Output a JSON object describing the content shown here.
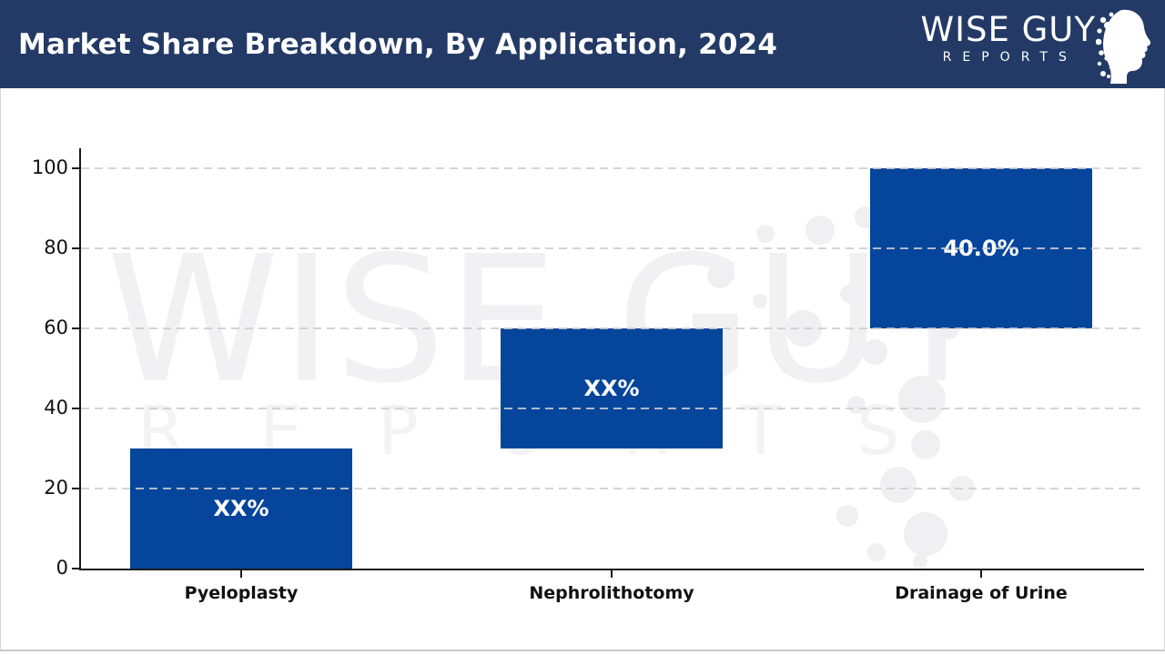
{
  "header": {
    "title": "Market Share Breakdown, By Application, 2024",
    "bg_color": "#233a66",
    "logo": {
      "line1": "WISE GUY",
      "line2": "REPORTS"
    }
  },
  "watermark": {
    "line1": "WISE GUY",
    "line2": "REPORTS"
  },
  "chart_data": {
    "type": "bar",
    "subtype": "waterfall",
    "title": "",
    "xlabel": "",
    "ylabel": "",
    "categories": [
      "Pyeloplasty",
      "Nephrolithotomy",
      "Drainage of Urine"
    ],
    "segments": [
      {
        "category": "Pyeloplasty",
        "start": 0,
        "end": 30,
        "label": "XX%"
      },
      {
        "category": "Nephrolithotomy",
        "start": 30,
        "end": 60,
        "label": "XX%"
      },
      {
        "category": "Drainage of Urine",
        "start": 60,
        "end": 100,
        "label": "40.0%"
      }
    ],
    "yticks": [
      0,
      20,
      40,
      60,
      80,
      100
    ],
    "ylim": [
      0,
      104
    ],
    "grid": "horizontal dashed, drawn above bars",
    "legend": null,
    "bar_color": "#06459c",
    "bar_label_color": "#ffffff",
    "axis_color": "#1a1a1a"
  }
}
